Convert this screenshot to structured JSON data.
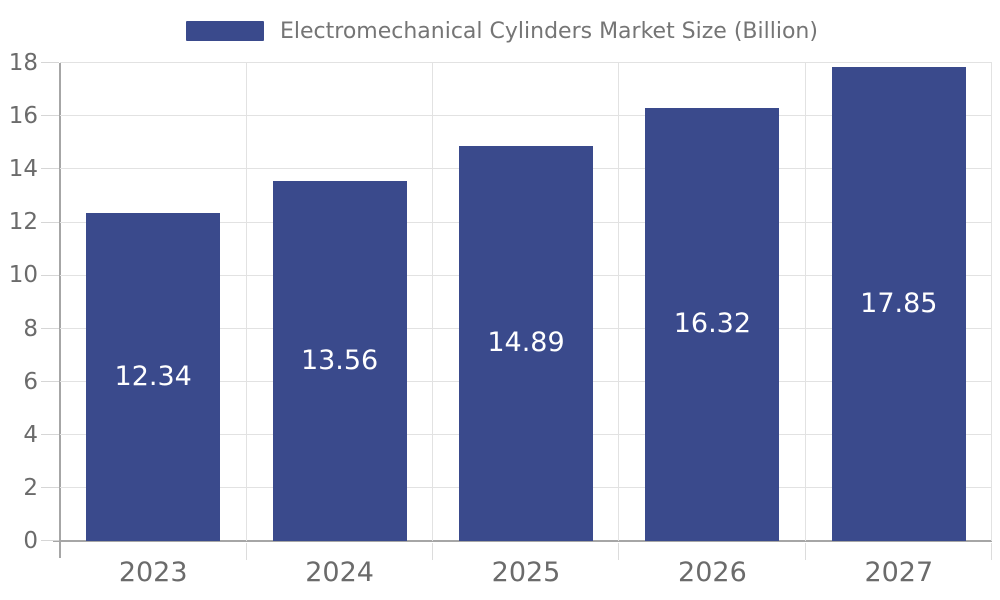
{
  "legend": {
    "label": "Electromechanical Cylinders Market Size (Billion)"
  },
  "chart_data": {
    "type": "bar",
    "title": "",
    "xlabel": "",
    "ylabel": "",
    "categories": [
      "2023",
      "2024",
      "2025",
      "2026",
      "2027"
    ],
    "series": [
      {
        "name": "Electromechanical Cylinders Market Size (Billion)",
        "values": [
          12.34,
          13.56,
          14.89,
          16.32,
          17.85
        ]
      }
    ],
    "value_labels": [
      "12.34",
      "13.56",
      "14.89",
      "16.32",
      "17.85"
    ],
    "ylim": [
      0,
      18
    ],
    "ytick_step": 2,
    "ytick_labels": [
      "0",
      "2",
      "4",
      "6",
      "8",
      "10",
      "12",
      "14",
      "16",
      "18"
    ],
    "grid": true,
    "legend_position": "top",
    "colors": {
      "bar": "#3a4a8c",
      "value_label": "#ffffff",
      "gridline": "#e2e2e2",
      "axis_line": "#a6a6a6",
      "tick_label": "#6b6b6b",
      "legend_text": "#757575",
      "background": "#ffffff"
    }
  }
}
